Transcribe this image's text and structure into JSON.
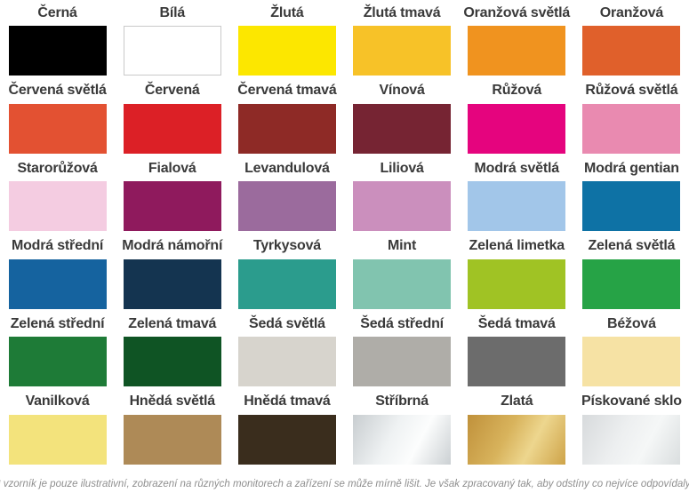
{
  "page": {
    "background": "#ffffff",
    "label_color": "#3a3a3a",
    "footnote": "* vzorník je pouze ilustrativní, zobrazení na různých monitorech a zařízení se může mírně lišit. Je však zpracovaný tak, aby odstíny co nejvíce odpovídaly."
  },
  "palette": {
    "columns": 6,
    "swatches": [
      {
        "label": "Černá",
        "color": "#000000"
      },
      {
        "label": "Bílá",
        "color": "#ffffff",
        "border": "#c9c9c9"
      },
      {
        "label": "Žlutá",
        "color": "#fce700"
      },
      {
        "label": "Žlutá tmavá",
        "color": "#f7c228"
      },
      {
        "label": "Oranžová světlá",
        "color": "#f0931f"
      },
      {
        "label": "Oranžová",
        "color": "#e0602b"
      },
      {
        "label": "Červená světlá",
        "color": "#e35132"
      },
      {
        "label": "Červená",
        "color": "#dc2026"
      },
      {
        "label": "Červená tmavá",
        "color": "#8e2a26"
      },
      {
        "label": "Vínová",
        "color": "#762433"
      },
      {
        "label": "Růžová",
        "color": "#e5047e"
      },
      {
        "label": "Růžová světlá",
        "color": "#e98ab0"
      },
      {
        "label": "Starorůžová",
        "color": "#f4cce1"
      },
      {
        "label": "Fialová",
        "color": "#8f1a5d"
      },
      {
        "label": "Levandulová",
        "color": "#9b6b9d"
      },
      {
        "label": "Liliová",
        "color": "#cb8fbd"
      },
      {
        "label": "Modrá světlá",
        "color": "#a2c6e9"
      },
      {
        "label": "Modrá gentian",
        "color": "#0e72a5"
      },
      {
        "label": "Modrá střední",
        "color": "#15639f"
      },
      {
        "label": "Modrá námořní",
        "color": "#143450"
      },
      {
        "label": "Tyrkysová",
        "color": "#2b9c8d"
      },
      {
        "label": "Mint",
        "color": "#81c4af"
      },
      {
        "label": "Zelená limetka",
        "color": "#a0c324"
      },
      {
        "label": "Zelená světlá",
        "color": "#26a346"
      },
      {
        "label": "Zelená střední",
        "color": "#1e7b37"
      },
      {
        "label": "Zelená tmavá",
        "color": "#0f5424"
      },
      {
        "label": "Šedá světlá",
        "color": "#d7d4cd"
      },
      {
        "label": "Šedá střední",
        "color": "#afada8"
      },
      {
        "label": "Šedá tmavá",
        "color": "#6c6c6c"
      },
      {
        "label": "Béžová",
        "color": "#f6e2a4"
      },
      {
        "label": "Vanilková",
        "color": "#f3e37c"
      },
      {
        "label": "Hnědá světlá",
        "color": "#ae8a57"
      },
      {
        "label": "Hnědá tmavá",
        "color": "#3a2d1d"
      },
      {
        "label": "Stříbrná",
        "gradient": {
          "angle": 118,
          "stops": [
            "#c8cdd0",
            "#eff2f3",
            "#fcfdfd",
            "#cbd0d3"
          ]
        }
      },
      {
        "label": "Zlatá",
        "gradient": {
          "angle": 118,
          "stops": [
            "#c0913b",
            "#d8b35c",
            "#edd68e",
            "#cea348"
          ]
        }
      },
      {
        "label": "Pískované sklo",
        "gradient": {
          "angle": 118,
          "stops": [
            "#d7dadc",
            "#edeff0",
            "#f5f7f7",
            "#dadedf"
          ]
        }
      }
    ]
  }
}
